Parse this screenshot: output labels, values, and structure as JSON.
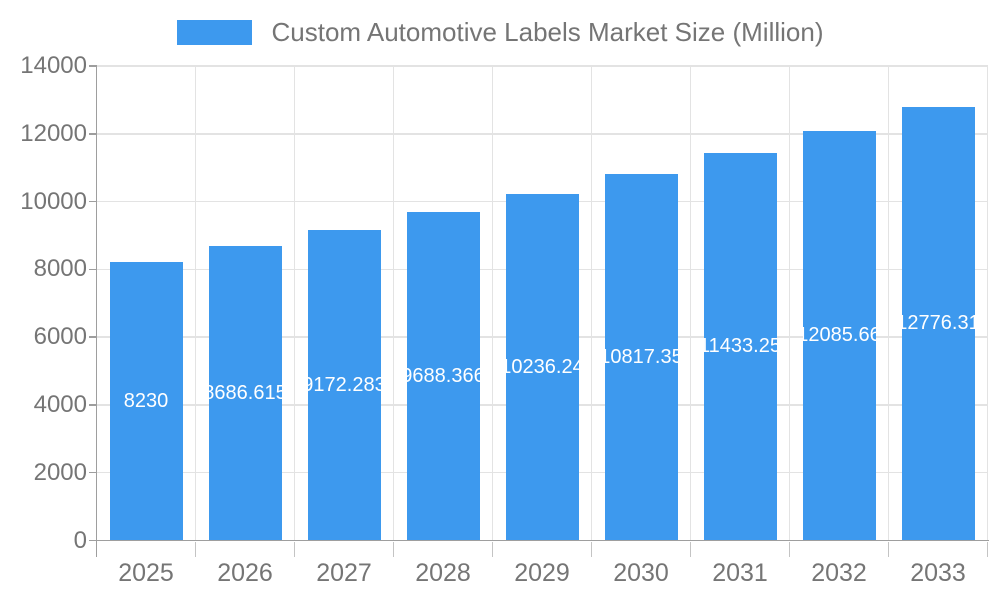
{
  "legend": {
    "swatch_color": "#3D99EE",
    "label": "Custom Automotive Labels Market Size (Million)"
  },
  "chart_data": {
    "type": "bar",
    "title": "Custom Automotive Labels Market Size (Million)",
    "categories": [
      "2025",
      "2026",
      "2027",
      "2028",
      "2029",
      "2030",
      "2031",
      "2032",
      "2033"
    ],
    "series": [
      {
        "name": "Custom Automotive Labels Market Size (Million)",
        "values": [
          8230,
          8686.615,
          9172.283,
          9688.366,
          10236.24,
          10817.35,
          11433.25,
          12085.66,
          12776.31
        ]
      }
    ],
    "bar_labels": [
      "8230",
      "8686.615",
      "9172.283",
      "9688.366",
      "10236.24",
      "10817.35",
      "11433.25",
      "12085.66",
      "12776.31"
    ],
    "xlabel": "",
    "ylabel": "",
    "ylim": [
      0,
      14000
    ],
    "yticks": [
      0,
      2000,
      4000,
      6000,
      8000,
      10000,
      12000,
      14000
    ],
    "grid": true,
    "legend_position": "top",
    "bar_color": "#3D99EE",
    "bar_label_color": "#FFFFFF",
    "axis_label_color": "#757575",
    "axis_line_color": "#9E9E9E",
    "gridline_color": "#E3E3E3",
    "tick_color": "#C4C4C4"
  }
}
